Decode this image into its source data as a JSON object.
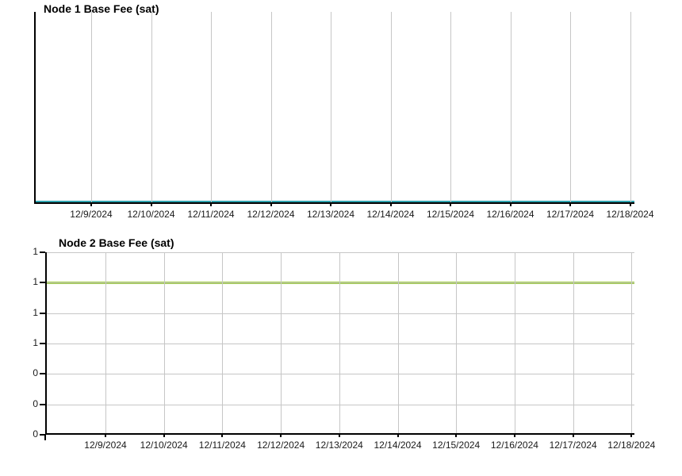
{
  "charts": [
    {
      "title": "Node 1 Base Fee (sat)",
      "line_color": "#2FA4B0",
      "x_labels": [
        "12/9/2024",
        "12/10/2024",
        "12/11/2024",
        "12/12/2024",
        "12/13/2024",
        "12/14/2024",
        "12/15/2024",
        "12/16/2024",
        "12/17/2024",
        "12/18/2024"
      ],
      "y_tick_labels": []
    },
    {
      "title": "Node 2 Base Fee (sat)",
      "line_color": "#9CCB3C",
      "x_labels": [
        "12/9/2024",
        "12/10/2024",
        "12/11/2024",
        "12/12/2024",
        "12/13/2024",
        "12/14/2024",
        "12/15/2024",
        "12/16/2024",
        "12/17/2024",
        "12/18/2024"
      ],
      "y_tick_labels": [
        "1",
        "1",
        "1",
        "1",
        "0",
        "0",
        "0"
      ]
    }
  ],
  "chart_data": [
    {
      "type": "line",
      "title": "Node 1 Base Fee (sat)",
      "x": [
        "12/9/2024",
        "12/10/2024",
        "12/11/2024",
        "12/12/2024",
        "12/13/2024",
        "12/14/2024",
        "12/15/2024",
        "12/16/2024",
        "12/17/2024",
        "12/18/2024"
      ],
      "series": [
        {
          "name": "Node 1 Base Fee (sat)",
          "values": [
            0,
            0,
            0,
            0,
            0,
            0,
            0,
            0,
            0,
            0
          ],
          "color": "#2FA4B0"
        }
      ],
      "xlabel": "",
      "ylabel": "",
      "grid": "vertical gridlines only",
      "legend_position": "none",
      "y_axis_tick_labels_visible": false
    },
    {
      "type": "line",
      "title": "Node 2 Base Fee (sat)",
      "x": [
        "12/9/2024",
        "12/10/2024",
        "12/11/2024",
        "12/12/2024",
        "12/13/2024",
        "12/14/2024",
        "12/15/2024",
        "12/16/2024",
        "12/17/2024",
        "12/18/2024"
      ],
      "series": [
        {
          "name": "Node 2 Base Fee (sat)",
          "values": [
            1,
            1,
            1,
            1,
            1,
            1,
            1,
            1,
            1,
            1
          ],
          "color": "#9CCB3C"
        }
      ],
      "xlabel": "",
      "ylabel": "",
      "ylim": [
        0,
        1.2
      ],
      "y_tick_labels_top_to_bottom": [
        "1",
        "1",
        "1",
        "1",
        "0",
        "0",
        "0"
      ],
      "grid": "vertical and horizontal gridlines",
      "legend_position": "none"
    }
  ]
}
